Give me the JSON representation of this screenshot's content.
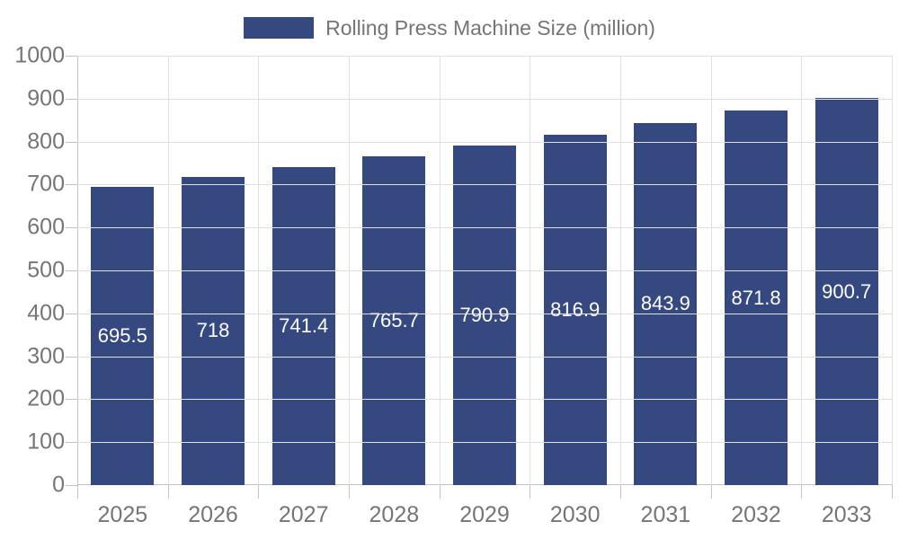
{
  "legend": {
    "label": "Rolling Press Machine Size (million)"
  },
  "colors": {
    "bar": "#354880",
    "axis_text": "#757575",
    "grid_line": "#e0e0e0",
    "axis_line": "#c2c2c8",
    "value_label": "#ffffff",
    "background": "#ffffff"
  },
  "chart_data": {
    "type": "bar",
    "title": "Rolling Press Machine Size (million)",
    "series_name": "Rolling Press Machine Size (million)",
    "categories": [
      "2025",
      "2026",
      "2027",
      "2028",
      "2029",
      "2030",
      "2031",
      "2032",
      "2033"
    ],
    "values": [
      695.5,
      718,
      741.4,
      765.7,
      790.9,
      816.9,
      843.9,
      871.8,
      900.7
    ],
    "xlabel": "",
    "ylabel": "",
    "ylim": [
      0,
      1000
    ],
    "ytick_step": 100,
    "grid": true,
    "legend_position": "top",
    "value_label_position": "inside-center"
  }
}
